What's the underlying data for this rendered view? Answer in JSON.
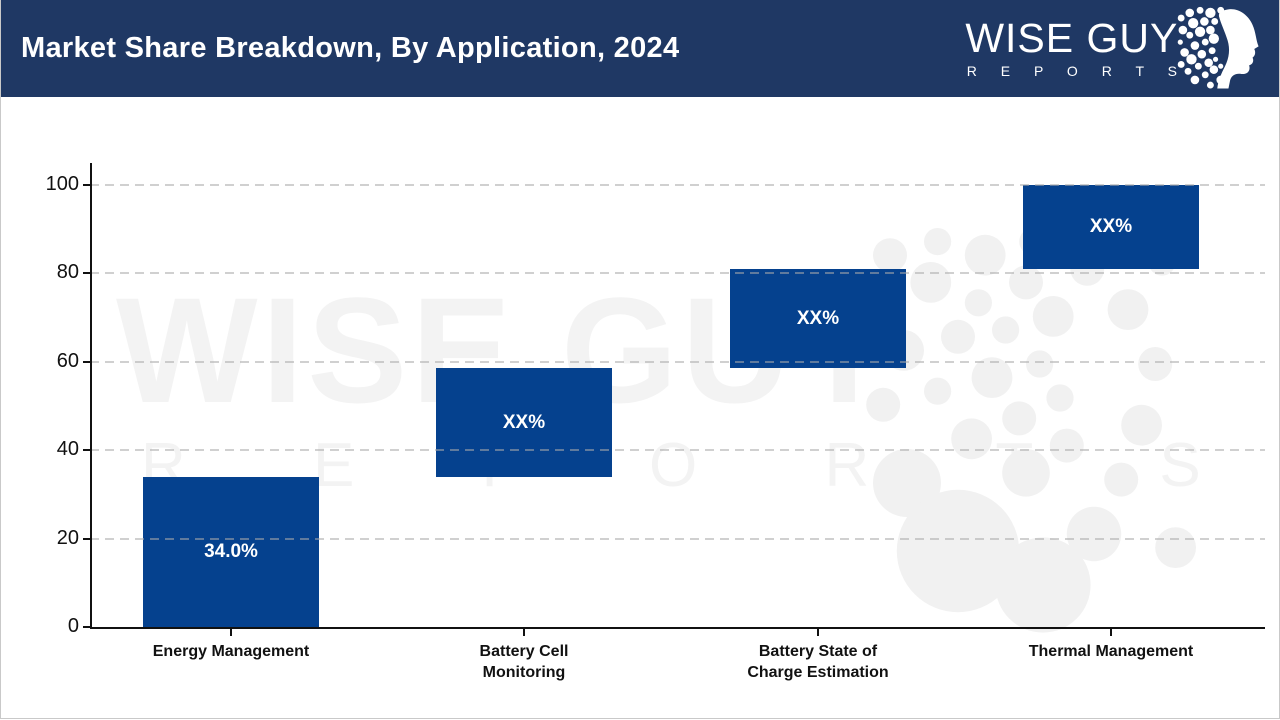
{
  "header": {
    "title": "Market Share Breakdown, By Application, 2024",
    "logo": {
      "line1": "WISE GUY",
      "line2": "R E P O R T S"
    }
  },
  "watermark": {
    "line1": "WISE GUY",
    "line2": "R E P O R T S"
  },
  "chart_data": {
    "type": "bar",
    "subtype": "waterfall",
    "title": "Market Share Breakdown, By Application, 2024",
    "categories": [
      "Energy Management",
      "Battery Cell Monitoring",
      "Battery State of Charge Estimation",
      "Thermal Management"
    ],
    "segments": [
      {
        "category": "Energy Management",
        "category_lines": [
          "Energy Management"
        ],
        "start": 0.0,
        "end": 34.0,
        "label": "34.0%"
      },
      {
        "category": "Battery Cell Monitoring",
        "category_lines": [
          "Battery Cell",
          "Monitoring"
        ],
        "start": 34.0,
        "end": 58.5,
        "label": "XX%"
      },
      {
        "category": "Battery State of Charge Estimation",
        "category_lines": [
          "Battery State of",
          "Charge Estimation"
        ],
        "start": 58.5,
        "end": 81.0,
        "label": "XX%"
      },
      {
        "category": "Thermal Management",
        "category_lines": [
          "Thermal Management"
        ],
        "start": 81.0,
        "end": 100.0,
        "label": "XX%"
      }
    ],
    "y_ticks": [
      0,
      20,
      40,
      60,
      80,
      100
    ],
    "ylim": [
      0,
      105
    ],
    "grid": "horizontal dashed",
    "legend": "none",
    "colors": {
      "bar": "#05418e",
      "header_bg": "#1f3864",
      "axis": "#111111",
      "grid": "#c4c4c4",
      "bar_label_text": "#ffffff",
      "watermark": "#f2f2f2"
    }
  }
}
